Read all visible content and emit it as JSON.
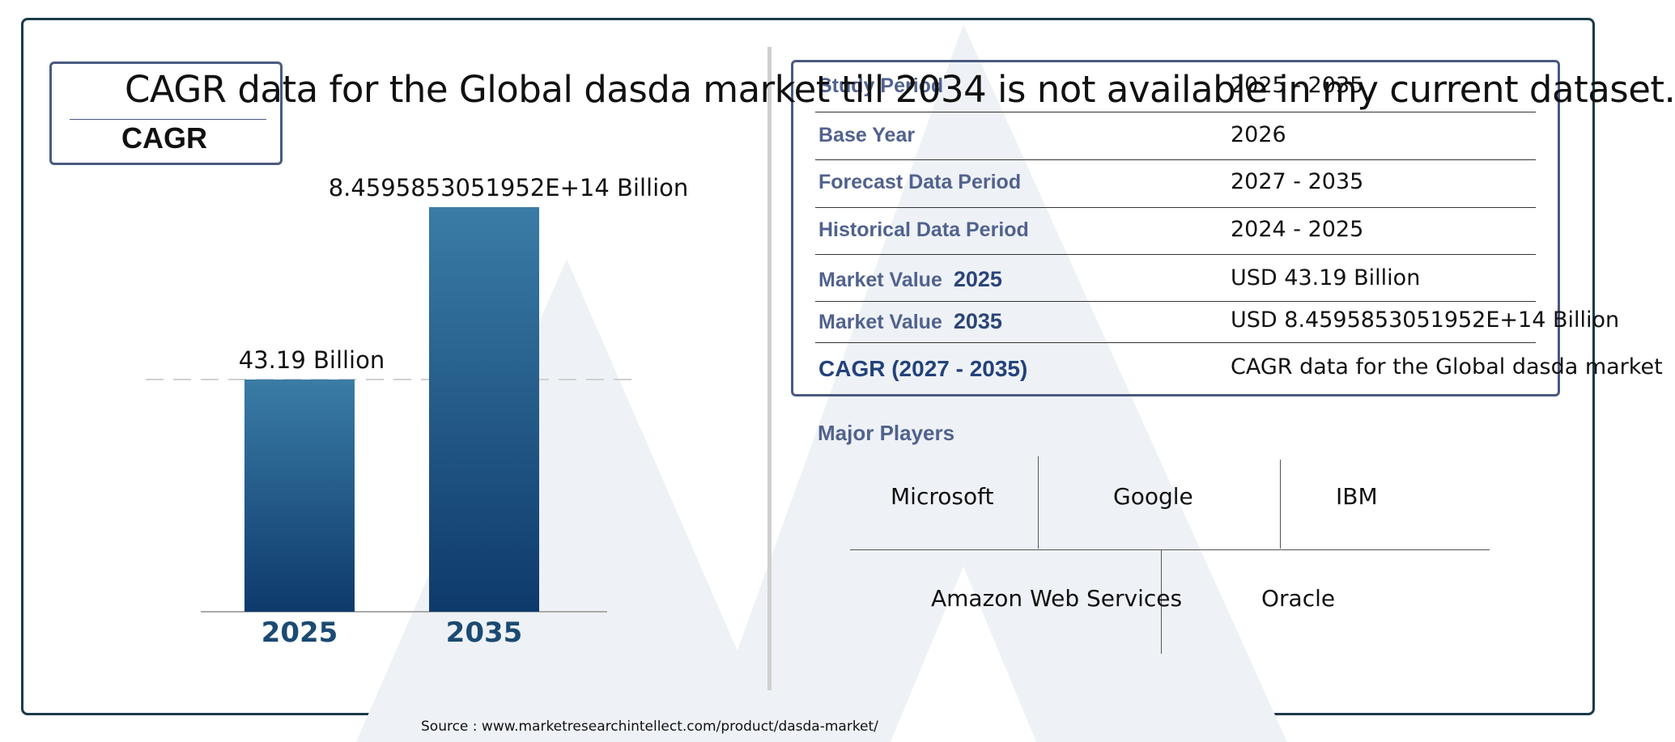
{
  "headline": "CAGR data for the Global dasda market till 2034 is not available in my current dataset.",
  "cagr_label": "CAGR",
  "chart_data": {
    "type": "bar",
    "categories": [
      "2025",
      "2035"
    ],
    "values": [
      43.19,
      845958530519520
    ],
    "data_labels": [
      "43.19 Billion",
      "8.4595853051952E+14 Billion"
    ],
    "title": "",
    "xlabel": "",
    "ylabel": "",
    "bar_color_top": "#3a7ca5",
    "bar_color_bottom": "#0e3a6b"
  },
  "info_table": {
    "rows": [
      {
        "label": "Study Period",
        "year": "",
        "value": "2025 - 2035"
      },
      {
        "label": "Base Year",
        "year": "",
        "value": "2026"
      },
      {
        "label": "Forecast Data Period",
        "year": "",
        "value": "2027 - 2035"
      },
      {
        "label": "Historical Data Period",
        "year": "",
        "value": "2024 - 2025"
      },
      {
        "label": "Market Value",
        "year": "2025",
        "value": "USD 43.19 Billion"
      },
      {
        "label": "Market Value",
        "year": "2035",
        "value": "USD 8.4595853051952E+14 Billion"
      },
      {
        "label": "CAGR (2027 - 2035)",
        "year": "",
        "value": "CAGR data for the Global dasda market"
      }
    ]
  },
  "major_players": {
    "title": "Major Players",
    "names": [
      "Microsoft",
      "Google",
      "IBM",
      "Amazon Web Services",
      "Oracle"
    ]
  },
  "source": "Source : www.marketresearchintellect.com/product/dasda-market/"
}
